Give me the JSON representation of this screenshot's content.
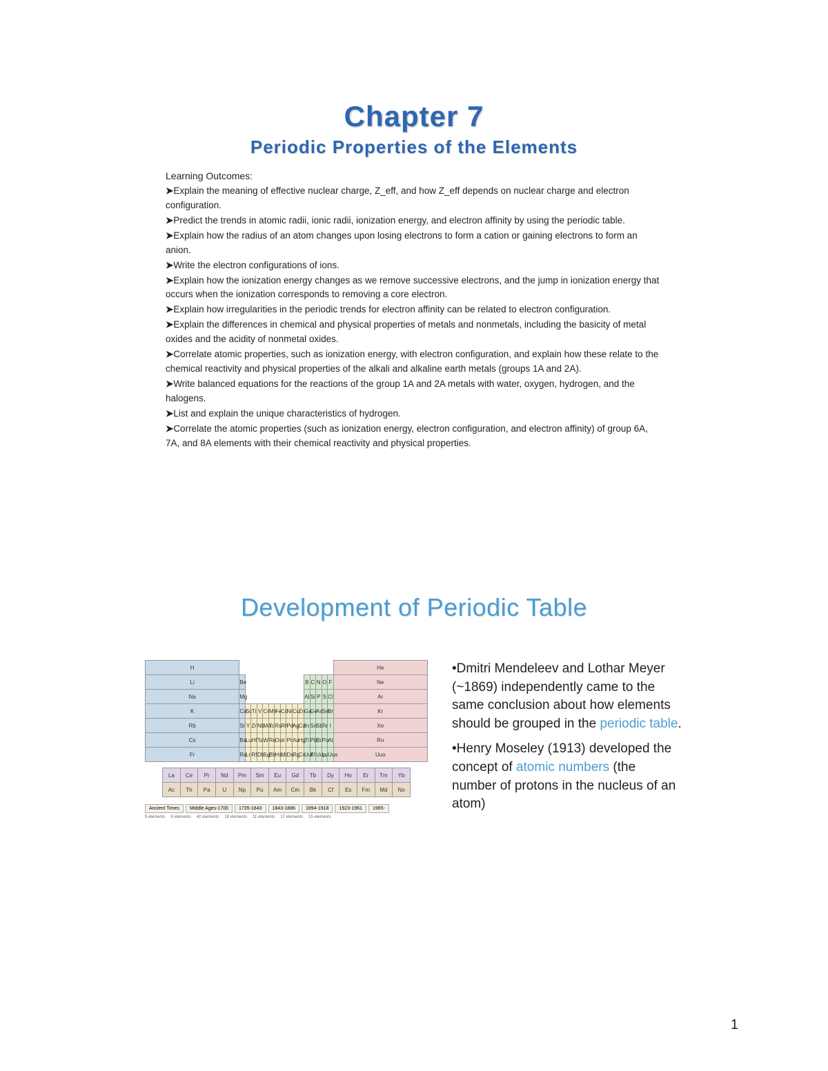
{
  "slide1": {
    "chapter_title": "Chapter 7",
    "chapter_subtitle": "Periodic Properties of the Elements",
    "outcomes_header": "Learning Outcomes:",
    "outcomes": [
      "Explain the meaning of effective nuclear charge, Z_eff, and how Z_eff depends on nuclear charge and electron configuration.",
      "Predict the trends in atomic radii, ionic radii, ionization energy, and electron affinity by using the periodic table.",
      "Explain how the radius of an atom changes upon losing electrons to form a cation or gaining electrons to form an anion.",
      "Write the electron configurations of ions.",
      "Explain how the ionization energy changes as we remove successive electrons, and the jump in ionization energy that occurs when the ionization corresponds to removing a core electron.",
      "Explain how irregularities in the periodic trends for electron affinity can be related to electron configuration.",
      "Explain the differences in chemical and physical properties of metals and nonmetals, including the basicity of metal oxides and the acidity of nonmetal oxides.",
      "Correlate atomic properties, such as ionization energy, with electron configuration, and explain how these relate to the chemical reactivity and physical properties of the alkali and alkaline earth metals (groups 1A and 2A).",
      "Write balanced equations for the reactions of the group 1A and 2A metals with water, oxygen, hydrogen, and the halogens.",
      "List and explain the unique characteristics of hydrogen.",
      "Correlate the atomic properties (such as ionization energy, electron configuration, and electron affinity) of group 6A, 7A, and 8A elements with their chemical reactivity and physical properties."
    ]
  },
  "slide2": {
    "title": "Development of Periodic Table",
    "pt": {
      "rows": [
        [
          {
            "s": "H",
            "c": "blue"
          },
          {
            "s": "",
            "c": "empty",
            "span": 16
          },
          {
            "s": "He",
            "c": "pink"
          }
        ],
        [
          {
            "s": "Li",
            "c": "blue"
          },
          {
            "s": "Be",
            "c": "blue"
          },
          {
            "s": "",
            "c": "empty",
            "span": 10
          },
          {
            "s": "B",
            "c": "green"
          },
          {
            "s": "C",
            "c": "green"
          },
          {
            "s": "N",
            "c": "green"
          },
          {
            "s": "O",
            "c": "green"
          },
          {
            "s": "F",
            "c": "green"
          },
          {
            "s": "Ne",
            "c": "pink"
          }
        ],
        [
          {
            "s": "Na",
            "c": "blue"
          },
          {
            "s": "Mg",
            "c": "blue"
          },
          {
            "s": "",
            "c": "empty",
            "span": 10
          },
          {
            "s": "Al",
            "c": "green"
          },
          {
            "s": "Si",
            "c": "green"
          },
          {
            "s": "P",
            "c": "green"
          },
          {
            "s": "S",
            "c": "green"
          },
          {
            "s": "Cl",
            "c": "green"
          },
          {
            "s": "Ar",
            "c": "pink"
          }
        ],
        [
          {
            "s": "K",
            "c": "blue"
          },
          {
            "s": "Ca",
            "c": "blue"
          },
          {
            "s": "Sc",
            "c": "yellow"
          },
          {
            "s": "Ti",
            "c": "yellow"
          },
          {
            "s": "V",
            "c": "yellow"
          },
          {
            "s": "Cr",
            "c": "yellow"
          },
          {
            "s": "Mn",
            "c": "yellow"
          },
          {
            "s": "Fe",
            "c": "yellow"
          },
          {
            "s": "Co",
            "c": "yellow"
          },
          {
            "s": "Ni",
            "c": "yellow"
          },
          {
            "s": "Cu",
            "c": "yellow"
          },
          {
            "s": "Zn",
            "c": "yellow"
          },
          {
            "s": "Ga",
            "c": "green"
          },
          {
            "s": "Ge",
            "c": "green"
          },
          {
            "s": "As",
            "c": "green"
          },
          {
            "s": "Se",
            "c": "green"
          },
          {
            "s": "Br",
            "c": "green"
          },
          {
            "s": "Kr",
            "c": "pink"
          }
        ],
        [
          {
            "s": "Rb",
            "c": "blue"
          },
          {
            "s": "Sr",
            "c": "blue"
          },
          {
            "s": "Y",
            "c": "yellow"
          },
          {
            "s": "Zr",
            "c": "yellow"
          },
          {
            "s": "Nb",
            "c": "yellow"
          },
          {
            "s": "Mo",
            "c": "yellow"
          },
          {
            "s": "Tc",
            "c": "yellow"
          },
          {
            "s": "Ru",
            "c": "yellow"
          },
          {
            "s": "Rh",
            "c": "yellow"
          },
          {
            "s": "Pd",
            "c": "yellow"
          },
          {
            "s": "Ag",
            "c": "yellow"
          },
          {
            "s": "Cd",
            "c": "yellow"
          },
          {
            "s": "In",
            "c": "green"
          },
          {
            "s": "Sn",
            "c": "green"
          },
          {
            "s": "Sb",
            "c": "green"
          },
          {
            "s": "Te",
            "c": "green"
          },
          {
            "s": "I",
            "c": "green"
          },
          {
            "s": "Xe",
            "c": "pink"
          }
        ],
        [
          {
            "s": "Cs",
            "c": "blue"
          },
          {
            "s": "Ba",
            "c": "blue"
          },
          {
            "s": "Lu",
            "c": "yellow"
          },
          {
            "s": "Hf",
            "c": "yellow"
          },
          {
            "s": "Ta",
            "c": "yellow"
          },
          {
            "s": "W",
            "c": "yellow"
          },
          {
            "s": "Re",
            "c": "yellow"
          },
          {
            "s": "Os",
            "c": "yellow"
          },
          {
            "s": "Ir",
            "c": "yellow"
          },
          {
            "s": "Pt",
            "c": "yellow"
          },
          {
            "s": "Au",
            "c": "yellow"
          },
          {
            "s": "Hg",
            "c": "yellow"
          },
          {
            "s": "Tl",
            "c": "green"
          },
          {
            "s": "Pb",
            "c": "green"
          },
          {
            "s": "Bi",
            "c": "green"
          },
          {
            "s": "Po",
            "c": "green"
          },
          {
            "s": "At",
            "c": "green"
          },
          {
            "s": "Rn",
            "c": "pink"
          }
        ],
        [
          {
            "s": "Fr",
            "c": "blue"
          },
          {
            "s": "Ra",
            "c": "blue"
          },
          {
            "s": "Lr",
            "c": "yellow"
          },
          {
            "s": "Rf",
            "c": "yellow"
          },
          {
            "s": "Db",
            "c": "yellow"
          },
          {
            "s": "Sg",
            "c": "yellow"
          },
          {
            "s": "Bh",
            "c": "yellow"
          },
          {
            "s": "Hs",
            "c": "yellow"
          },
          {
            "s": "Mt",
            "c": "yellow"
          },
          {
            "s": "Ds",
            "c": "yellow"
          },
          {
            "s": "Rg",
            "c": "yellow"
          },
          {
            "s": "Cn",
            "c": "yellow"
          },
          {
            "s": "Uut",
            "c": "green"
          },
          {
            "s": "Fl",
            "c": "green"
          },
          {
            "s": "Uup",
            "c": "green"
          },
          {
            "s": "Lv",
            "c": "green"
          },
          {
            "s": "Uus",
            "c": "green"
          },
          {
            "s": "Uuo",
            "c": "pink"
          }
        ]
      ],
      "frows": [
        [
          {
            "s": "",
            "c": "empty",
            "span": 3
          },
          {
            "s": "La",
            "c": "lav"
          },
          {
            "s": "Ce",
            "c": "lav"
          },
          {
            "s": "Pr",
            "c": "lav"
          },
          {
            "s": "Nd",
            "c": "lav"
          },
          {
            "s": "Pm",
            "c": "lav"
          },
          {
            "s": "Sm",
            "c": "lav"
          },
          {
            "s": "Eu",
            "c": "lav"
          },
          {
            "s": "Gd",
            "c": "lav"
          },
          {
            "s": "Tb",
            "c": "lav"
          },
          {
            "s": "Dy",
            "c": "lav"
          },
          {
            "s": "Ho",
            "c": "lav"
          },
          {
            "s": "Er",
            "c": "lav"
          },
          {
            "s": "Tm",
            "c": "lav"
          },
          {
            "s": "Yb",
            "c": "lav"
          },
          {
            "s": "",
            "c": "empty"
          }
        ],
        [
          {
            "s": "",
            "c": "empty",
            "span": 3
          },
          {
            "s": "Ac",
            "c": "tan"
          },
          {
            "s": "Th",
            "c": "tan"
          },
          {
            "s": "Pa",
            "c": "tan"
          },
          {
            "s": "U",
            "c": "tan"
          },
          {
            "s": "Np",
            "c": "tan"
          },
          {
            "s": "Pu",
            "c": "tan"
          },
          {
            "s": "Am",
            "c": "tan"
          },
          {
            "s": "Cm",
            "c": "tan"
          },
          {
            "s": "Bk",
            "c": "tan"
          },
          {
            "s": "Cf",
            "c": "tan"
          },
          {
            "s": "Es",
            "c": "tan"
          },
          {
            "s": "Fm",
            "c": "tan"
          },
          {
            "s": "Md",
            "c": "tan"
          },
          {
            "s": "No",
            "c": "tan"
          },
          {
            "s": "",
            "c": "empty"
          }
        ]
      ]
    },
    "timeline": [
      "Ancient Times",
      "Middle Ages-1700",
      "1735-1843",
      "1843-1886",
      "1894-1918",
      "1923-1961",
      "1965-"
    ],
    "timeline_labels": [
      "9 elements",
      "6 elements",
      "42 elements",
      "18 elements",
      "11 elements",
      "17 elements",
      "15 elements"
    ],
    "para1_a": "•Dmitri Mendeleev and Lothar Meyer (~1869) independently came to the same conclusion about how elements should be grouped in the ",
    "para1_link": "periodic table",
    "para1_b": ".",
    "para2_a": "•Henry Moseley (1913) developed the concept of ",
    "para2_link": "atomic numbers",
    "para2_b": " (the number of protons in the nucleus of an atom)"
  },
  "page_number": "1"
}
